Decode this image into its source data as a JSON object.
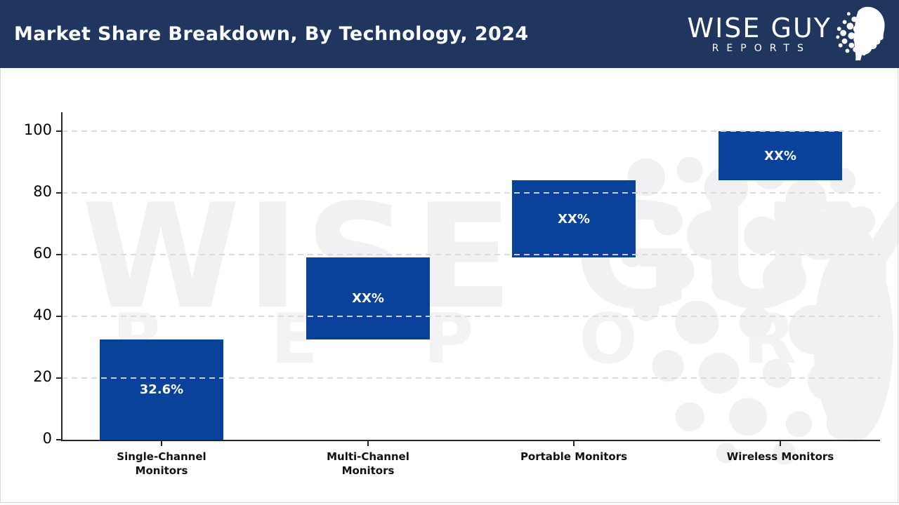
{
  "header": {
    "title": "Market Share Breakdown, By Technology, 2024",
    "logo": {
      "line1": "WISE GUY",
      "line2": "REPORTS"
    }
  },
  "watermark": {
    "line1": "WISE GUY",
    "line2": "R E P O R T S"
  },
  "chart_data": {
    "type": "bar",
    "subtype": "waterfall",
    "title": "Market Share Breakdown, By Technology, 2024",
    "categories": [
      [
        "Single-Channel",
        "Monitors"
      ],
      [
        "Multi-Channel",
        "Monitors"
      ],
      [
        "Portable Monitors"
      ],
      [
        "Wireless Monitors"
      ]
    ],
    "segments": [
      {
        "start": 0,
        "end": 32.6,
        "label": "32.6%"
      },
      {
        "start": 32.6,
        "end": 59,
        "label": "XX%"
      },
      {
        "start": 59,
        "end": 84,
        "label": "XX%"
      },
      {
        "start": 84,
        "end": 100,
        "label": "XX%"
      }
    ],
    "yticks": [
      0,
      20,
      40,
      60,
      80,
      100
    ],
    "ylim": [
      0,
      107
    ],
    "xlabel": "",
    "ylabel": "",
    "grid": "horizontal-dashed",
    "legend": "none",
    "colors": {
      "bar": "#0a419b",
      "bar_label": "#ffffff",
      "axis": "#262626",
      "grid": "#d9d9d9",
      "header_bg": "#21365f",
      "watermark": "#f1f1f4"
    }
  }
}
